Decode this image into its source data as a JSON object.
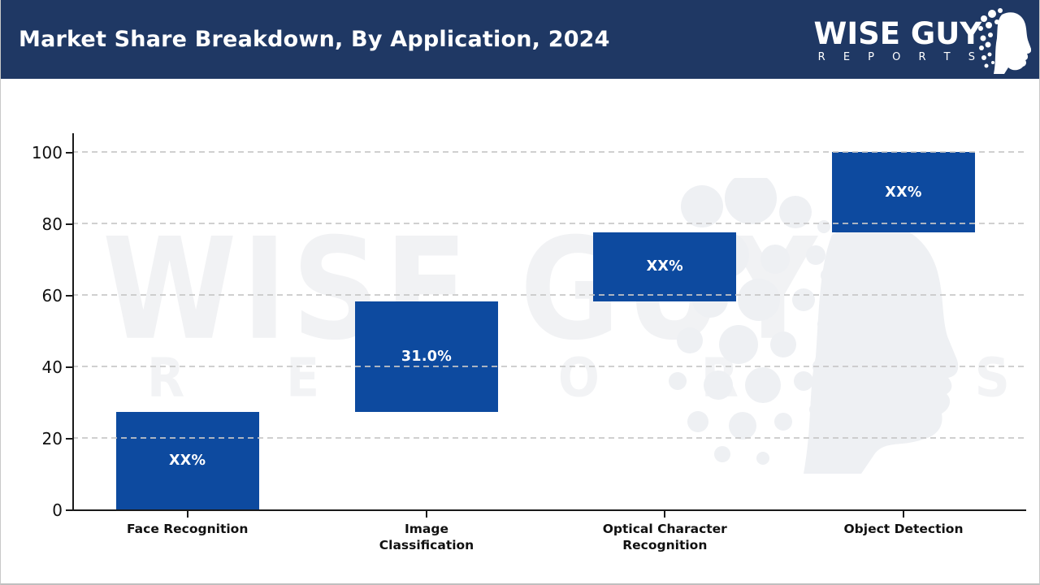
{
  "header": {
    "title": "Market Share Breakdown, By Application, 2024",
    "background_color": "#1f3864",
    "logo": {
      "wordmark": "WISE GUY",
      "sub": "R E P O R T S"
    }
  },
  "watermark": {
    "line1": "WISE GUY",
    "line2": "R E P O R T S"
  },
  "chart_data": {
    "type": "bar",
    "subtype": "floating-waterfall",
    "title": "Market Share Breakdown, By Application, 2024",
    "categories": [
      "Face Recognition",
      "Image\nClassification",
      "Optical Character\nRecognition",
      "Object Detection"
    ],
    "bars": [
      {
        "category": "Face Recognition",
        "start": 0,
        "end": 27.2,
        "label": "XX%"
      },
      {
        "category": "Image Classification",
        "start": 27.2,
        "end": 58.2,
        "label": "31.0%"
      },
      {
        "category": "Optical Character Recognition",
        "start": 58.2,
        "end": 77.5,
        "label": "XX%"
      },
      {
        "category": "Object Detection",
        "start": 77.5,
        "end": 100,
        "label": "XX%"
      }
    ],
    "yticks": [
      0,
      20,
      40,
      60,
      80,
      100
    ],
    "ylim": [
      0,
      105
    ],
    "grid": "horizontal-dashed",
    "grid_color": "#c7c7c7",
    "bar_color": "#0d4a9f",
    "bar_label_color": "#ffffff",
    "axis_color": "#1a1a1a"
  }
}
